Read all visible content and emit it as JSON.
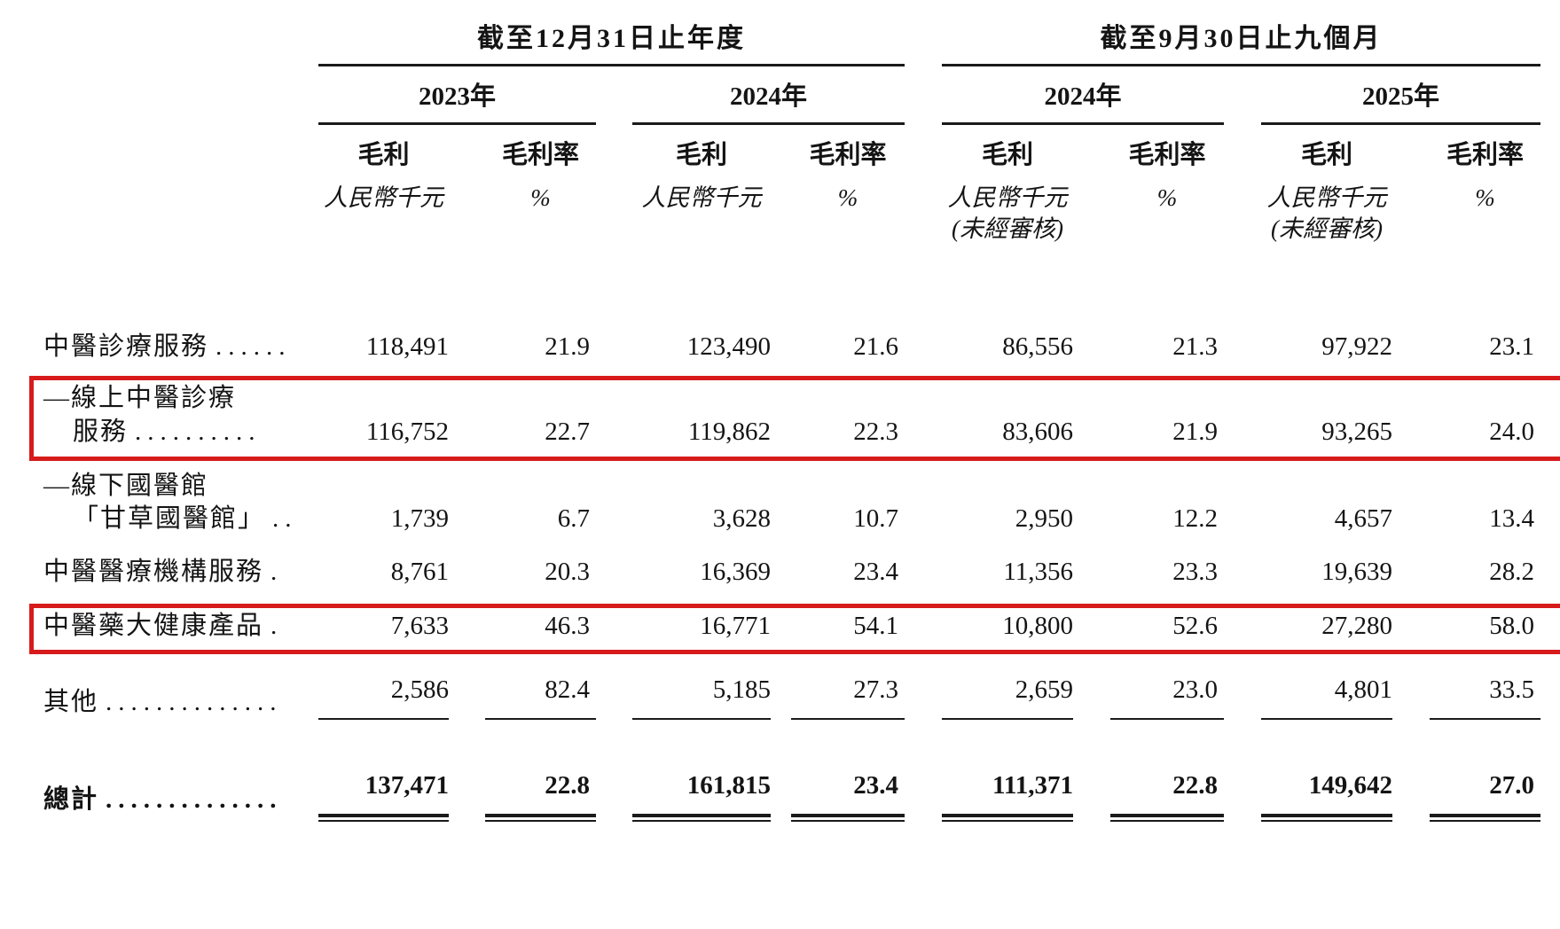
{
  "colors": {
    "highlight_box": "#d71b1b",
    "text": "#141414",
    "rule": "#1a1a1a",
    "background": "#ffffff"
  },
  "header": {
    "group_annual": {
      "title": "截至12月31日止年度"
    },
    "group_nine_month": {
      "title": "截至9月30日止九個月"
    },
    "years": [
      "2023年",
      "2024年",
      "2024年",
      "2025年"
    ],
    "gp_label": "毛利",
    "gpm_label": "毛利率",
    "gp_unit": "人民幣千元",
    "gpm_unit": "%",
    "unaudited_note": "(未經審核)"
  },
  "rows": [
    {
      "line1": "",
      "label": "中醫診療服務",
      "dots": "......",
      "highlighted": false,
      "values": [
        "118,491",
        "21.9",
        "123,490",
        "21.6",
        "86,556",
        "21.3",
        "97,922",
        "23.1"
      ]
    },
    {
      "line1": "—線上中醫診療",
      "label": "服務",
      "dots": "..........",
      "highlighted": true,
      "values": [
        "116,752",
        "22.7",
        "119,862",
        "22.3",
        "83,606",
        "21.9",
        "93,265",
        "24.0"
      ]
    },
    {
      "line1": "—線下國醫館",
      "label": "「甘草國醫館」",
      "dots": "..",
      "highlighted": false,
      "values": [
        "1,739",
        "6.7",
        "3,628",
        "10.7",
        "2,950",
        "12.2",
        "4,657",
        "13.4"
      ]
    },
    {
      "line1": "",
      "label": "中醫醫療機構服務",
      "dots": ".",
      "highlighted": false,
      "values": [
        "8,761",
        "20.3",
        "16,369",
        "23.4",
        "11,356",
        "23.3",
        "19,639",
        "28.2"
      ]
    },
    {
      "line1": "",
      "label": "中醫藥大健康產品",
      "dots": ".",
      "highlighted": true,
      "values": [
        "7,633",
        "46.3",
        "16,771",
        "54.1",
        "10,800",
        "52.6",
        "27,280",
        "58.0"
      ]
    },
    {
      "line1": "",
      "label": "其他",
      "dots": "..............",
      "highlighted": false,
      "values": [
        "2,586",
        "82.4",
        "5,185",
        "27.3",
        "2,659",
        "23.0",
        "4,801",
        "33.5"
      ]
    }
  ],
  "total_row": {
    "label": "總計",
    "dots": "..............",
    "values": [
      "137,471",
      "22.8",
      "161,815",
      "23.4",
      "111,371",
      "22.8",
      "149,642",
      "27.0"
    ]
  }
}
